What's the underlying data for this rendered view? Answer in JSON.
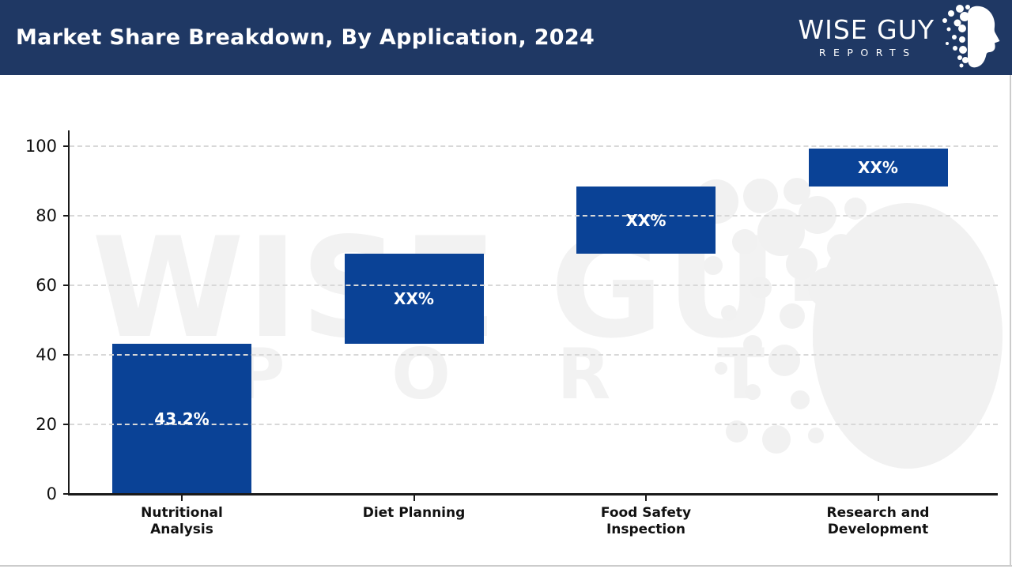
{
  "header": {
    "title": "Market Share Breakdown, By Application, 2024",
    "bg_color": "#1f3864",
    "brand": {
      "name": "WISE GUY",
      "sub": "REPORTS"
    }
  },
  "watermark": {
    "line1": "WISE GU·Y",
    "line2": "P O R T S"
  },
  "chart_data": {
    "type": "bar",
    "subtype": "waterfall",
    "title": "Market Share Breakdown, By Application, 2024",
    "xlabel": "",
    "ylabel": "",
    "ylim": [
      0,
      104.5
    ],
    "yticks": [
      0,
      20,
      40,
      60,
      80,
      100
    ],
    "grid": "horizontal-dashed-over-bars",
    "legend": "none",
    "bar_color": "#0a4296",
    "bar_label_color": "#ffffff",
    "categories": [
      "Nutritional Analysis",
      "Diet Planning",
      "Food Safety Inspection",
      "Research and Development"
    ],
    "segments": [
      {
        "category": "Nutritional Analysis",
        "label_lines": [
          "Nutritional",
          "Analysis"
        ],
        "start": 0,
        "end": 43.2,
        "label": "43.2%"
      },
      {
        "category": "Diet Planning",
        "label_lines": [
          "Diet Planning"
        ],
        "start": 43.2,
        "end": 69.0,
        "label": "XX%"
      },
      {
        "category": "Food Safety Inspection",
        "label_lines": [
          "Food Safety",
          "Inspection"
        ],
        "start": 69.0,
        "end": 88.3,
        "label": "XX%"
      },
      {
        "category": "Research and Development",
        "label_lines": [
          "Research and",
          "Development"
        ],
        "start": 88.3,
        "end": 99.4,
        "label": "XX%"
      }
    ]
  }
}
